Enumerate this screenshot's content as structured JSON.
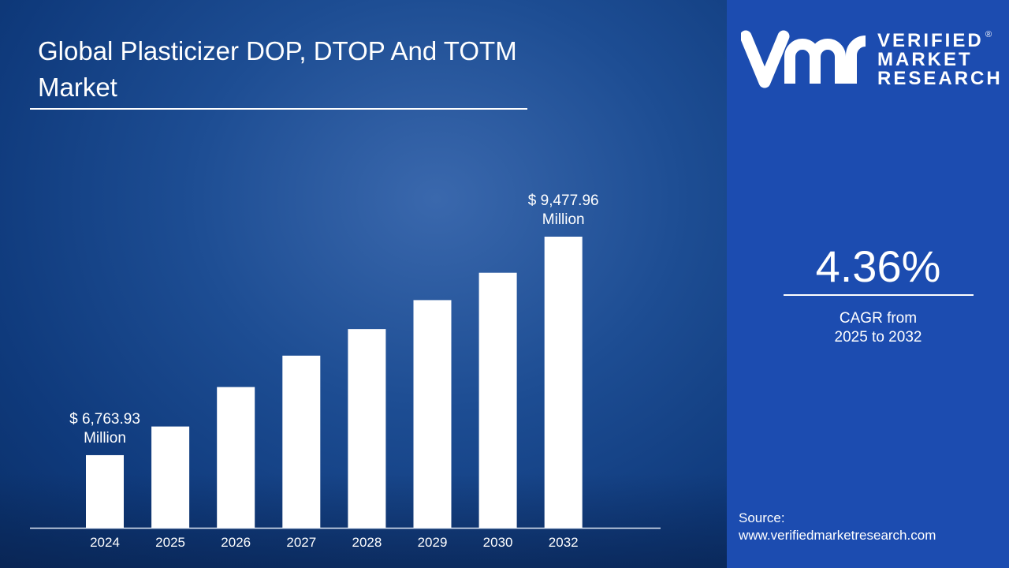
{
  "title": "Global Plasticizer DOP, DTOP And TOTM Market",
  "brand": {
    "logo_mark": "vmr",
    "name_lines": [
      "VERIFIED",
      "MARKET",
      "RESEARCH"
    ],
    "registered": "®"
  },
  "cagr": {
    "value": "4.36%",
    "label_line1": "CAGR from",
    "label_line2": "2025 to 2032"
  },
  "source": {
    "label": "Source:",
    "url": "www.verifiedmarketresearch.com"
  },
  "colors": {
    "left_bg": "#174584",
    "right_panel": "#1c4cb0",
    "bar": "#ffffff"
  },
  "chart_data": {
    "type": "bar",
    "title": "Global Plasticizer DOP, DTOP And TOTM Market",
    "categories": [
      "2024",
      "2025",
      "2026",
      "2027",
      "2028",
      "2029",
      "2030",
      "2032"
    ],
    "values": [
      6763.93,
      7120,
      7610,
      8000,
      8330,
      8690,
      9030,
      9477.96
    ],
    "unit": "USD Million",
    "annotations": [
      {
        "category": "2024",
        "line1": "$ 6,763.93",
        "line2": "Million"
      },
      {
        "category": "2032",
        "line1": "$ 9,477.96",
        "line2": "Million"
      }
    ],
    "xlabel": "",
    "ylabel": "",
    "ylim": [
      5862,
      9478
    ],
    "grid": false,
    "legend": "none"
  }
}
